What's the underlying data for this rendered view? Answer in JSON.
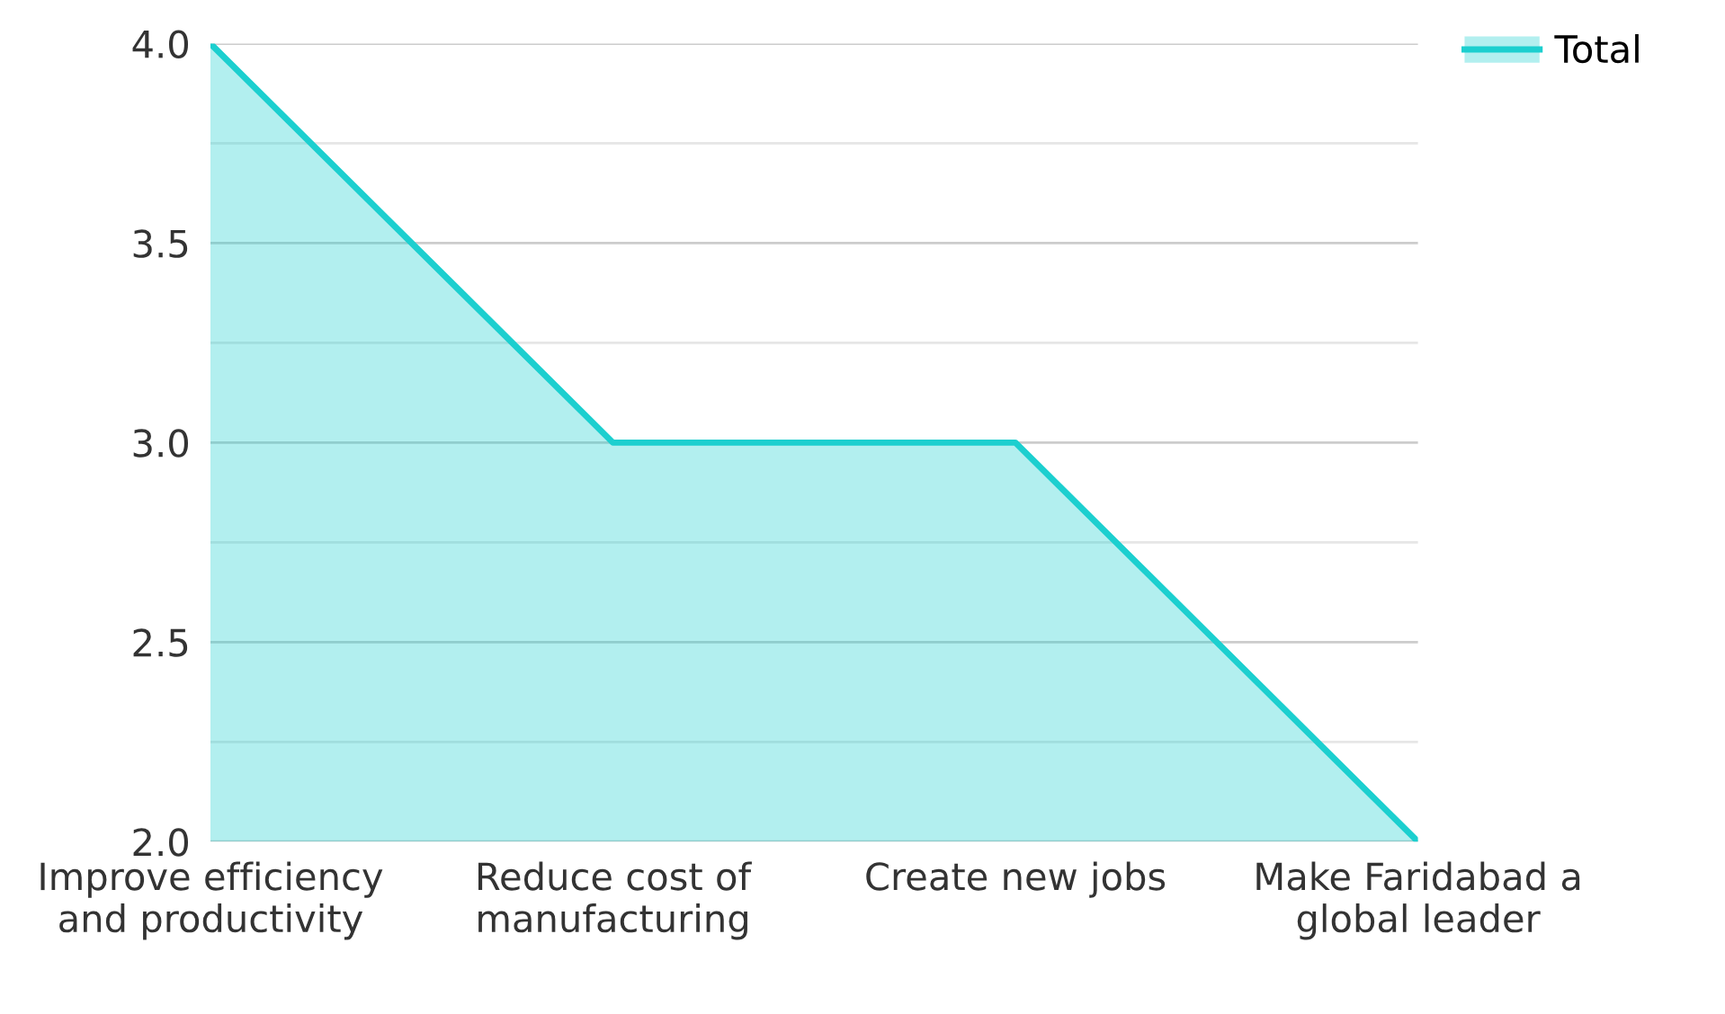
{
  "chart_data": {
    "type": "area",
    "categories": [
      "Improve efficiency\nand productivity",
      "Reduce cost of\nmanufacturing",
      "Create new jobs",
      "Make Faridabad a\nglobal leader"
    ],
    "series": [
      {
        "name": "Total",
        "color": "#1ccfcf",
        "values": [
          4,
          3,
          3,
          2
        ]
      }
    ],
    "ylim": [
      2,
      4
    ],
    "yticks": [
      {
        "value": 2,
        "label": "2.0"
      },
      {
        "value": 2.25,
        "label": null
      },
      {
        "value": 2.5,
        "label": "2.5"
      },
      {
        "value": 2.75,
        "label": null
      },
      {
        "value": 3,
        "label": "3.0"
      },
      {
        "value": 3.25,
        "label": null
      },
      {
        "value": 3.5,
        "label": "3.5"
      },
      {
        "value": 3.75,
        "label": null
      },
      {
        "value": 4,
        "label": "4.0"
      }
    ],
    "grid": "y",
    "legend": "top right"
  }
}
